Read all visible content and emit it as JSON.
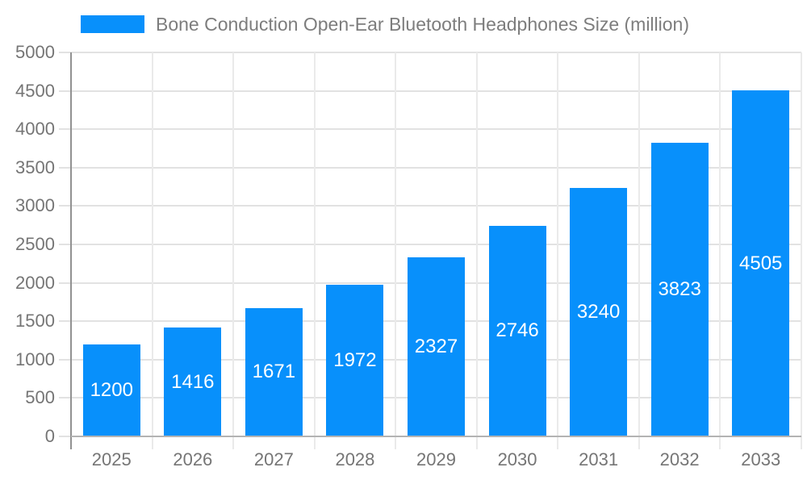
{
  "chart_data": {
    "type": "bar",
    "title": "Bone Conduction Open-Ear Bluetooth Headphones Size (million)",
    "categories": [
      "2025",
      "2026",
      "2027",
      "2028",
      "2029",
      "2030",
      "2031",
      "2032",
      "2033"
    ],
    "values": [
      1200,
      1416,
      1671,
      1972,
      2327,
      2746,
      3240,
      3823,
      4505
    ],
    "xlabel": "",
    "ylabel": "",
    "ylim": [
      0,
      5000
    ],
    "y_ticks": [
      0,
      500,
      1000,
      1500,
      2000,
      2500,
      3000,
      3500,
      4000,
      4500,
      5000
    ],
    "grid": true,
    "legend_position": "top-left",
    "bar_labels_visible": true,
    "colors": {
      "bar": "#0890fb",
      "bar_label": "#ffffff",
      "axis_y": "#919191",
      "axis_x": "#b3b3b3",
      "grid_h": "#e2e2e2",
      "grid_v": "#eaeaea",
      "tick": "#d6d6d6",
      "text": "#757575",
      "title_text": "#7d7d7d",
      "background": "#ffffff"
    }
  }
}
